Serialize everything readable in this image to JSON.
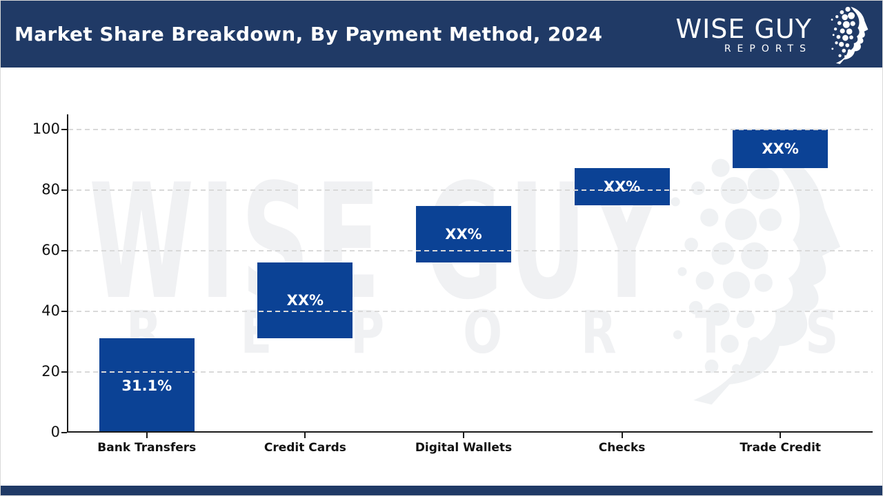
{
  "page": {
    "bg": "#ffffff",
    "border": "#d9d9d9"
  },
  "header": {
    "bg": "#203a66",
    "title": "Market Share Breakdown, By Payment Method, 2024",
    "logo_line1": "WISE GUY",
    "logo_line2": "REPORTS"
  },
  "footer": {
    "bg": "#203a66"
  },
  "watermark": {
    "line1": "WISE GUY",
    "line2": "R E P O R T S"
  },
  "chart_data": {
    "type": "bar",
    "subtype": "waterfall",
    "title": "Market Share Breakdown, By Payment Method, 2024",
    "categories": [
      "Bank Transfers",
      "Credit Cards",
      "Digital Wallets",
      "Checks",
      "Trade Credit"
    ],
    "segments": [
      {
        "category": "Bank Transfers",
        "start": 0,
        "end": 31.1,
        "label": "31.1%"
      },
      {
        "category": "Credit Cards",
        "start": 31.1,
        "end": 56.1,
        "label": "XX%"
      },
      {
        "category": "Digital Wallets",
        "start": 56.1,
        "end": 74.8,
        "label": "XX%"
      },
      {
        "category": "Checks",
        "start": 75.0,
        "end": 87.3,
        "label": "XX%"
      },
      {
        "category": "Trade Credit",
        "start": 87.3,
        "end": 100.0,
        "label": "XX%"
      }
    ],
    "y_ticks": [
      0,
      20,
      40,
      60,
      80,
      100
    ],
    "ylim": [
      0,
      105
    ],
    "xlabel": "",
    "ylabel": "",
    "grid": "horizontal-dashed",
    "grid_color": "#d9d9d9",
    "bar_color": "#0b4295",
    "bar_label_color": "#ffffff",
    "axis_color": "#1a1a1a",
    "legend_position": "none"
  }
}
